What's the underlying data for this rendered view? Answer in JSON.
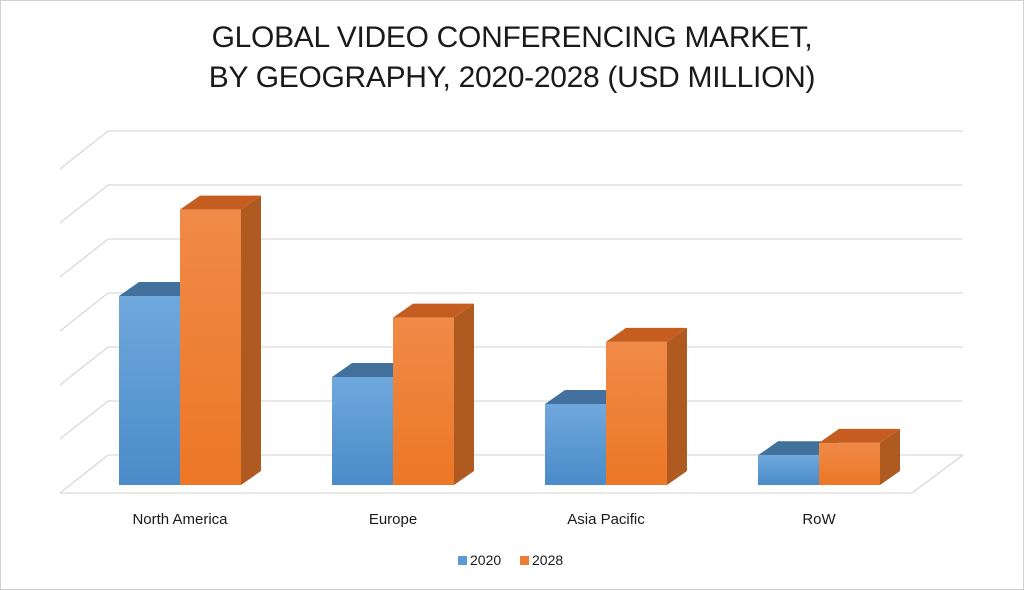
{
  "chart_data": {
    "type": "bar",
    "title_line1": "GLOBAL VIDEO CONFERENCING MARKET,",
    "title_line2": "BY GEOGRAPHY, 2020-2028 (USD MILLION)",
    "categories": [
      "North America",
      "Europe",
      "Asia Pacific",
      "RoW"
    ],
    "series": [
      {
        "name": "2020",
        "values": [
          3.5,
          2.0,
          1.5,
          0.55
        ]
      },
      {
        "name": "2028",
        "values": [
          5.1,
          3.1,
          2.65,
          0.78
        ]
      }
    ],
    "ylim": [
      0,
      6
    ],
    "grid": true,
    "legend_position": "bottom",
    "colors": {
      "s2020_front": "#5b9bd5",
      "s2020_top": "#41719c",
      "s2020_side": "#2e5f8f",
      "s2028_front": "#ed7d31",
      "s2028_top": "#c45d1f",
      "s2028_side": "#ae5a21",
      "grid": "#d9d9d9"
    }
  }
}
